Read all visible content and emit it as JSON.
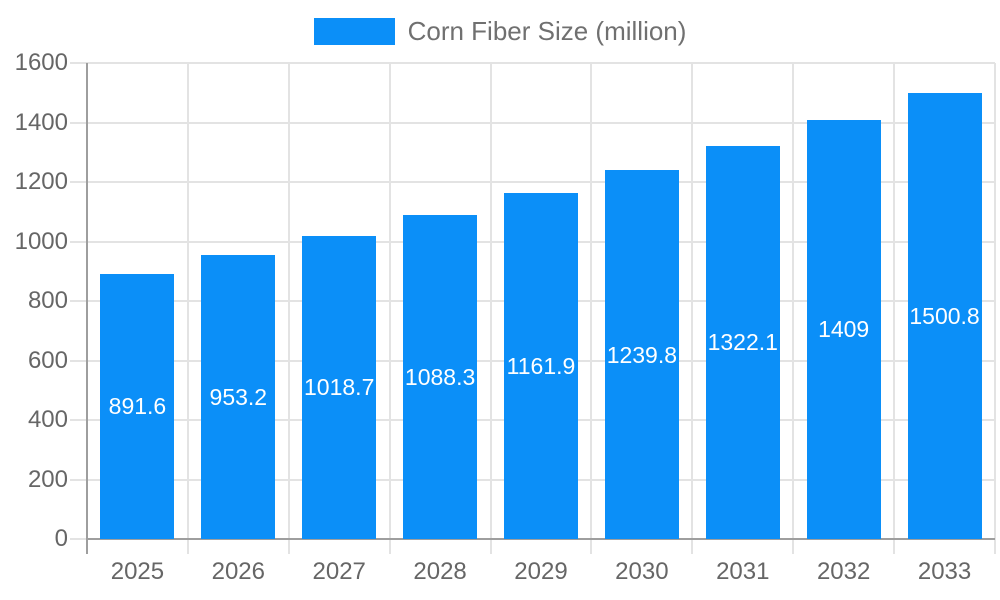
{
  "chart_data": {
    "type": "bar",
    "title": "",
    "categories": [
      "2025",
      "2026",
      "2027",
      "2028",
      "2029",
      "2030",
      "2031",
      "2032",
      "2033"
    ],
    "series": [
      {
        "name": "Corn Fiber Size (million)",
        "values": [
          891.6,
          953.2,
          1018.7,
          1088.3,
          1161.9,
          1239.8,
          1322.1,
          1409,
          1500.8
        ],
        "value_labels": [
          "891.6",
          "953.2",
          "1018.7",
          "1088.3",
          "1161.9",
          "1239.8",
          "1322.1",
          "1409",
          "1500.8"
        ]
      }
    ],
    "xlabel": "",
    "ylabel": "",
    "ylim": [
      0,
      1600
    ],
    "yticks": [
      0,
      200,
      400,
      600,
      800,
      1000,
      1200,
      1400,
      1600
    ],
    "grid": true,
    "legend_position": "top-center",
    "colors": {
      "bar": "#0b8ff8",
      "bar_label_text": "#ffffff",
      "axis_label_text": "#666666",
      "legend_text": "#707070",
      "gridline": "#e3e3e3",
      "axis_line": "#9e9e9e",
      "background": "#ffffff"
    }
  }
}
